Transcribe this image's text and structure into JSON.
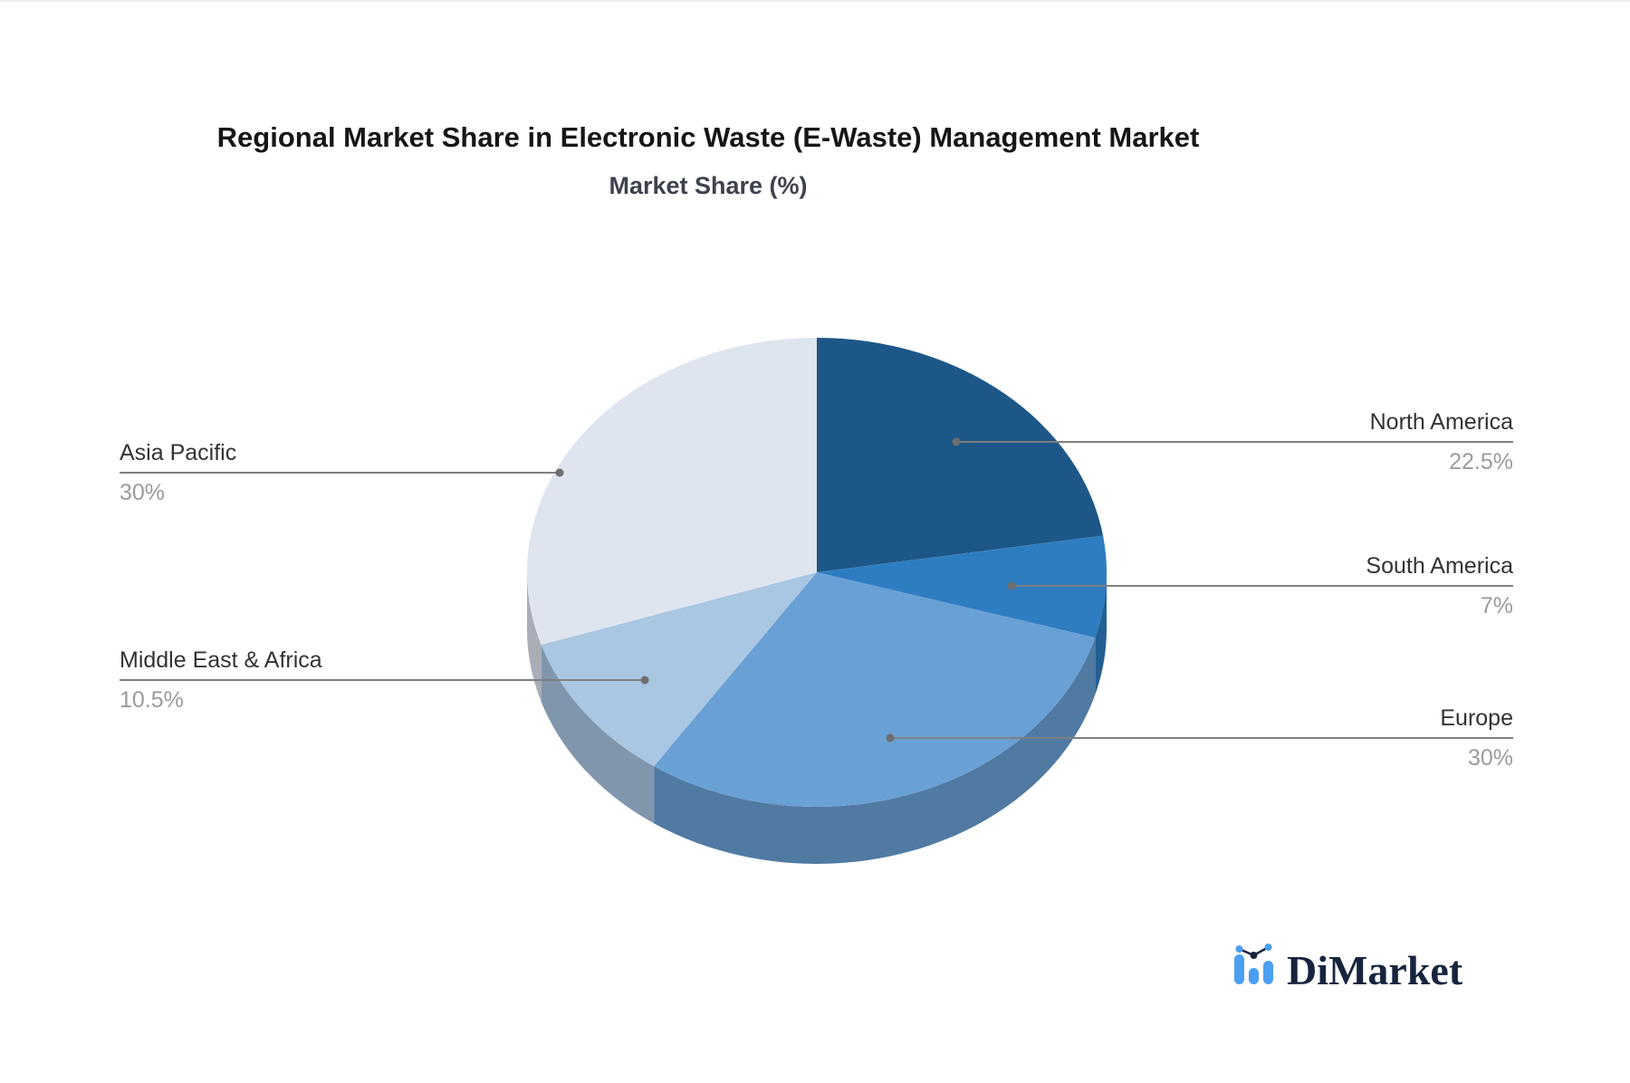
{
  "chart_data": {
    "type": "pie",
    "title": "Regional Market Share in Electronic Waste (E-Waste) Management Market",
    "subtitle": "Market Share (%)",
    "unit": "%",
    "style": "3d",
    "start_angle_deg": 90,
    "direction": "clockwise",
    "legend_position": "none",
    "connector_color": "#808080",
    "dot_color": "#6e6e6e",
    "name_label_color": "#333333",
    "value_label_color": "#9b9b9b",
    "points": [
      {
        "name": "North America",
        "value": 22.5,
        "label": "22.5%",
        "color": "#1d5788"
      },
      {
        "name": "South America",
        "value": 7,
        "label": "7%",
        "color": "#2e7dc1"
      },
      {
        "name": "Europe",
        "value": 30,
        "label": "30%",
        "color": "#69a0d5"
      },
      {
        "name": "Middle East & Africa",
        "value": 10.5,
        "label": "10.5%",
        "color": "#a9c6e2"
      },
      {
        "name": "Asia Pacific",
        "value": 30,
        "label": "30%",
        "color": "#dee5ef"
      }
    ]
  },
  "branding": {
    "logo_text": "DiMarket",
    "logo_blue": "#4b9ff2",
    "logo_navy": "#17243e"
  }
}
